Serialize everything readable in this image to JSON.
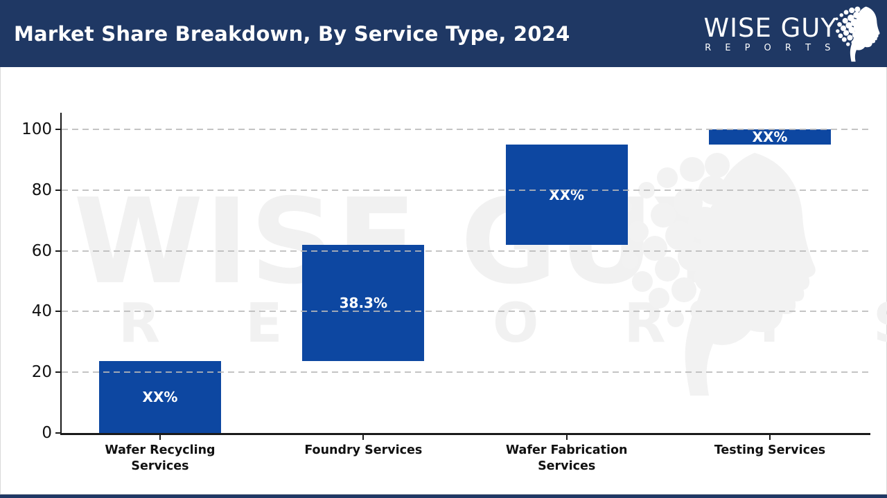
{
  "header": {
    "title": "Market Share Breakdown, By Service Type, 2024",
    "logo": {
      "brand": "WISE GUY",
      "sub": "R E P O R T S"
    }
  },
  "watermark": {
    "line1": "WISE GUY",
    "line2": "R E P O R T S"
  },
  "colors": {
    "bar": "#0d47a1",
    "header_background": "#1f3864",
    "gridline": "#b9b9b9",
    "axis": "#1a1a1a",
    "watermark": "#f1f1f1"
  },
  "chart_data": {
    "type": "bar",
    "subtype": "waterfall",
    "title": "Market Share Breakdown, By Service Type, 2024",
    "categories": [
      "Wafer Recycling\nServices",
      "Foundry Services",
      "Wafer Fabrication\nServices",
      "Testing Services"
    ],
    "segments": [
      {
        "category": "Wafer Recycling\nServices",
        "start": 0,
        "end": 23.7,
        "label": "XX%"
      },
      {
        "category": "Foundry Services",
        "start": 23.7,
        "end": 62.0,
        "label": "38.3%"
      },
      {
        "category": "Wafer Fabrication\nServices",
        "start": 62.0,
        "end": 94.9,
        "label": "XX%"
      },
      {
        "category": "Testing Services",
        "start": 94.9,
        "end": 100.0,
        "label": "XX%"
      }
    ],
    "xlabel": "",
    "ylabel": "",
    "ylim": [
      0,
      100
    ],
    "yticks": [
      0,
      20,
      40,
      60,
      80,
      100
    ],
    "grid": true,
    "grid_style": "dashed",
    "legend": false,
    "bar_color": "#0d47a1"
  }
}
